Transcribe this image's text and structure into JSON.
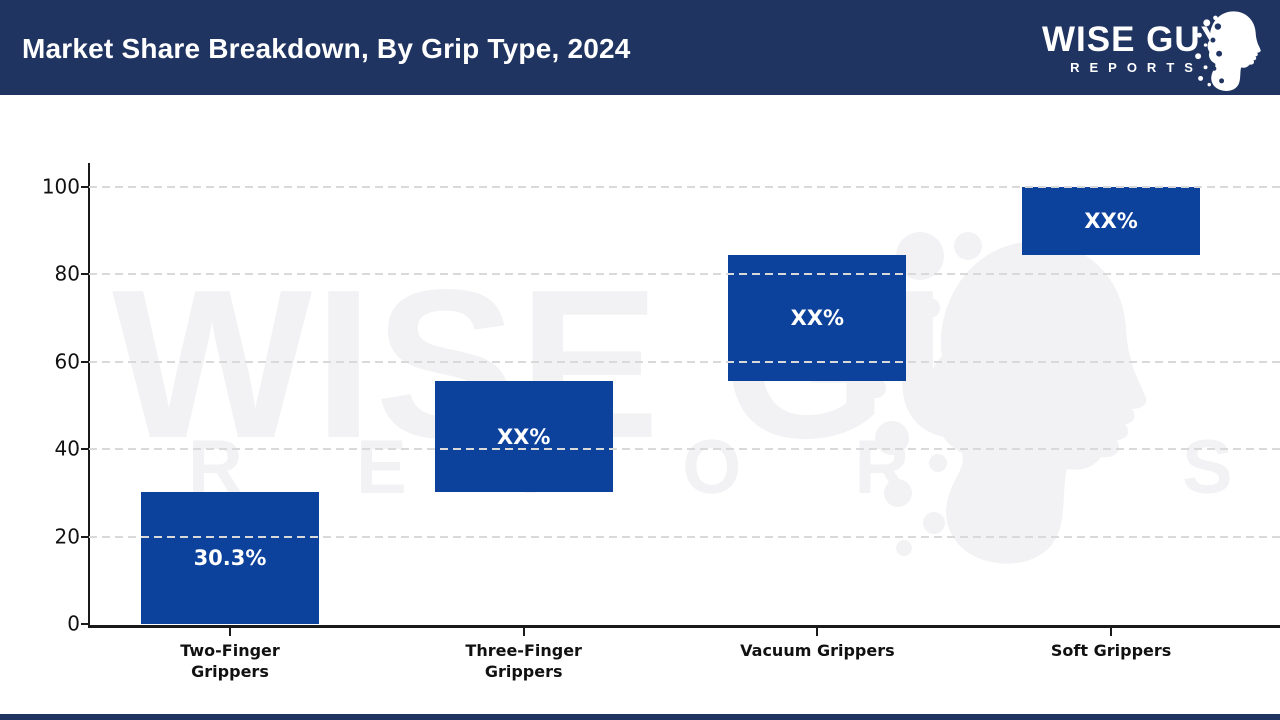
{
  "header": {
    "title": "Market Share Breakdown, By Grip Type, 2024",
    "bg_color": "#1f3461",
    "logo": {
      "line1": "WISE GUY",
      "line2": "REPORTS"
    }
  },
  "footer": {
    "bg_color": "#1f3461"
  },
  "watermark": {
    "big_text": "WISE GU",
    "reports_text": "R E P O R T S"
  },
  "chart_data": {
    "type": "bar",
    "subtype": "waterfall",
    "title": "Market Share Breakdown, By Grip Type, 2024",
    "categories": [
      "Two-Finger\nGrippers",
      "Three-Finger\nGrippers",
      "Vacuum Grippers",
      "Soft Grippers"
    ],
    "bars": [
      {
        "category": "Two-Finger Grippers",
        "start": 0,
        "end": 30.3,
        "value": 30.3,
        "label": "30.3%"
      },
      {
        "category": "Three-Finger Grippers",
        "start": 30.3,
        "end": 55.5,
        "value": 25.2,
        "label": "XX%"
      },
      {
        "category": "Vacuum Grippers",
        "start": 55.5,
        "end": 84.5,
        "value": 29.0,
        "label": "XX%"
      },
      {
        "category": "Soft Grippers",
        "start": 84.5,
        "end": 100,
        "value": 15.5,
        "label": "XX%"
      }
    ],
    "y_ticks": [
      0,
      20,
      40,
      60,
      80,
      100
    ],
    "ylim": [
      0,
      105
    ],
    "xlabel": "",
    "ylabel": "",
    "bar_color": "#0c429c",
    "grid": "horizontal-dashed",
    "grid_color": "#d9d9d9",
    "legend": "none"
  }
}
